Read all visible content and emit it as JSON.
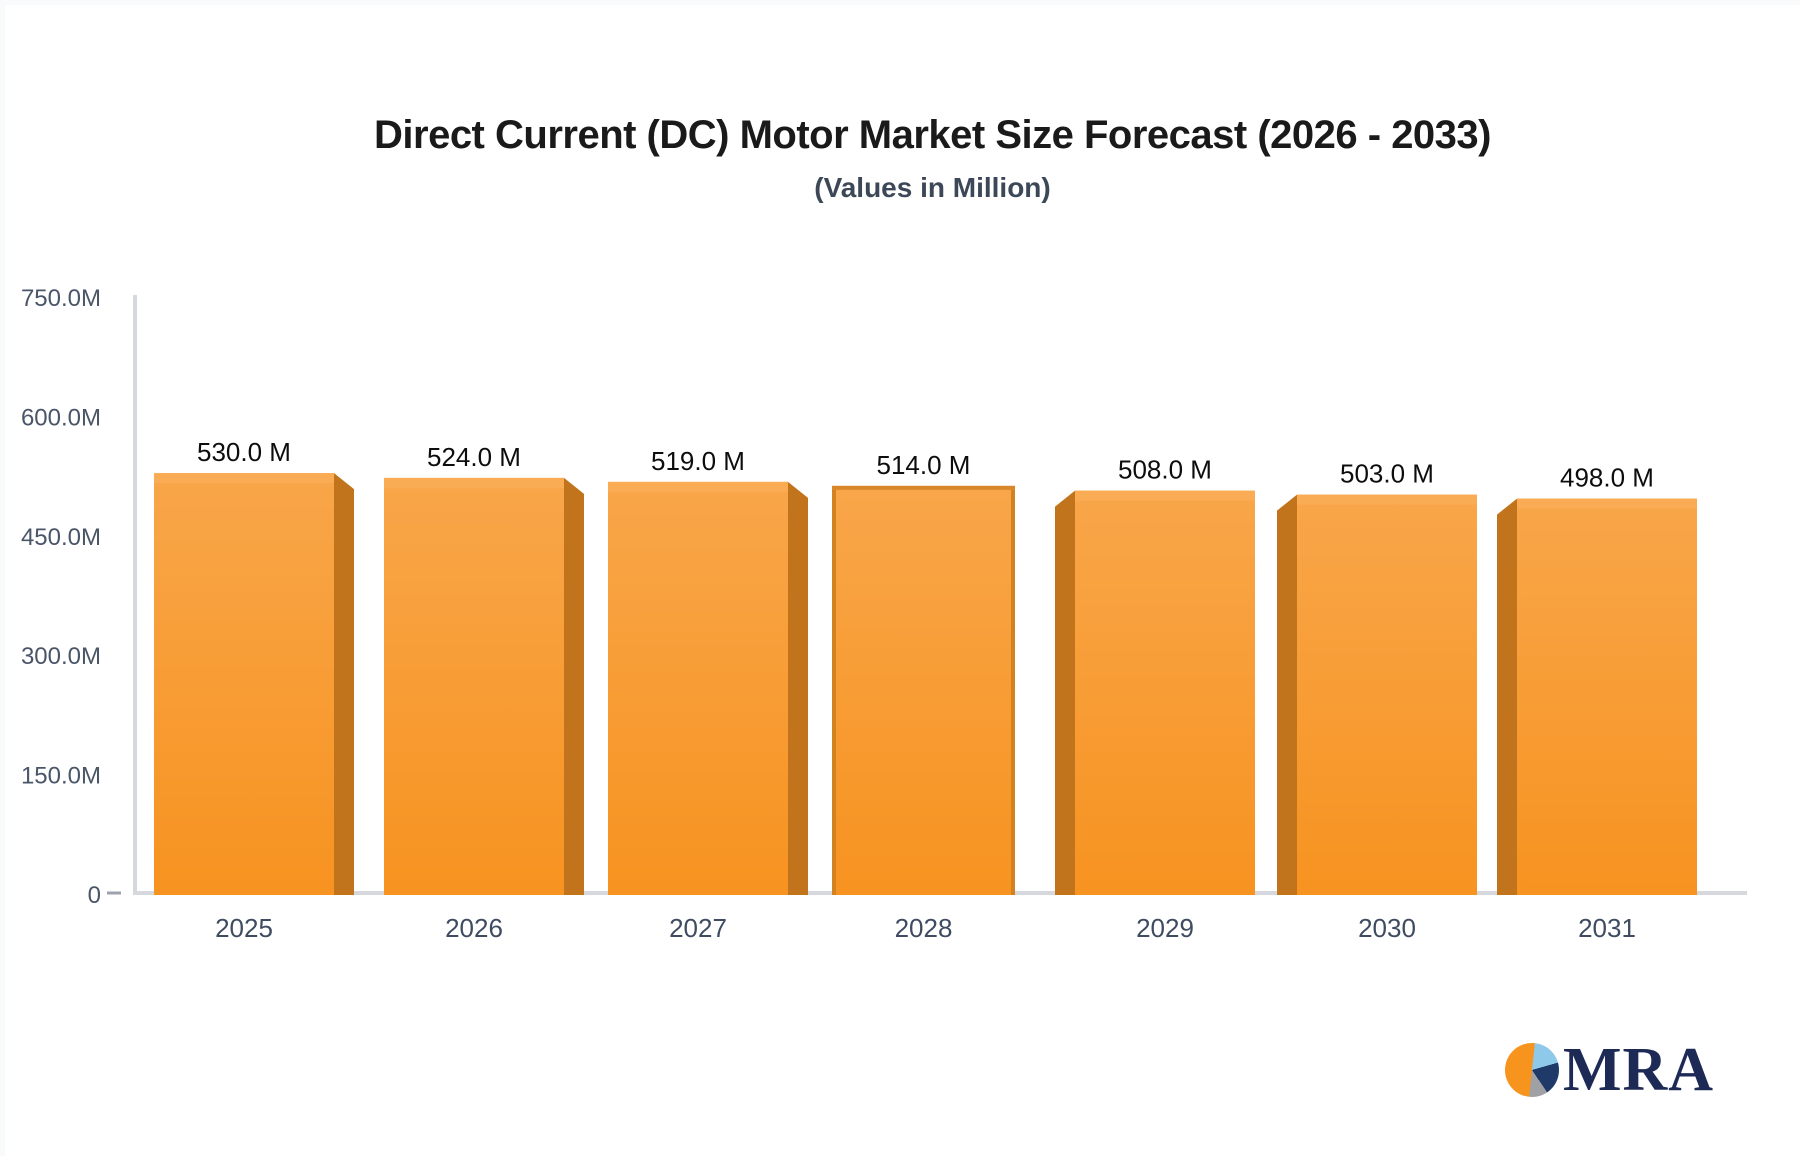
{
  "header": {
    "title": "Direct Current (DC) Motor Market Size Forecast (2026 - 2033)",
    "subtitle": "(Values in Million)"
  },
  "chart_data": {
    "type": "bar",
    "title": "Direct Current (DC) Motor Market Size Forecast (2026 - 2033)",
    "subtitle": "(Values in Million)",
    "unit": "Million",
    "categories": [
      "2025",
      "2026",
      "2027",
      "2028",
      "2029",
      "2030",
      "2031"
    ],
    "values": [
      530,
      524,
      519,
      514,
      508,
      503,
      498
    ],
    "value_labels": [
      "530.0 M",
      "524.0 M",
      "519.0 M",
      "514.0 M",
      "508.0 M",
      "503.0 M",
      "498.0 M"
    ],
    "xlabel": "",
    "ylabel": "",
    "ylim": [
      0,
      750
    ],
    "yticks": [
      0,
      150,
      300,
      450,
      600,
      750
    ],
    "ytick_labels": [
      "0",
      "150.0M",
      "300.0M",
      "450.0M",
      "600.0M",
      "750.0M"
    ],
    "grid": false,
    "legend": false,
    "bar_style": "3d-beveled",
    "colors": {
      "bar_body_top": "#F8A64A",
      "bar_body_bottom": "#F79320",
      "bar_top_face": "#FAAC55",
      "bar_side_face": "#C1741B",
      "bar_center_top_edge": "#D8872B",
      "bar_center_side_edge": "#D2821F",
      "axis_line": "#D7D8DD",
      "tick_dash": "#9CA3AF",
      "ytick_text": "#4A5568",
      "xtick_text": "#3F4B61",
      "value_text": "#0D0D0D",
      "title_text": "#1A1A1A",
      "subtitle_text": "#3C4858"
    }
  },
  "logo": {
    "text": "MRA",
    "colors": {
      "orange": "#F7941E",
      "light_blue": "#8EC9E9",
      "navy": "#1F3A68",
      "gray": "#9FA1A4",
      "text": "#1E2A56"
    },
    "pie_segments_deg": {
      "blue": [
        6,
        74
      ],
      "navy": [
        74,
        146
      ],
      "gray": [
        146,
        186
      ],
      "orange": [
        186,
        366
      ]
    }
  }
}
